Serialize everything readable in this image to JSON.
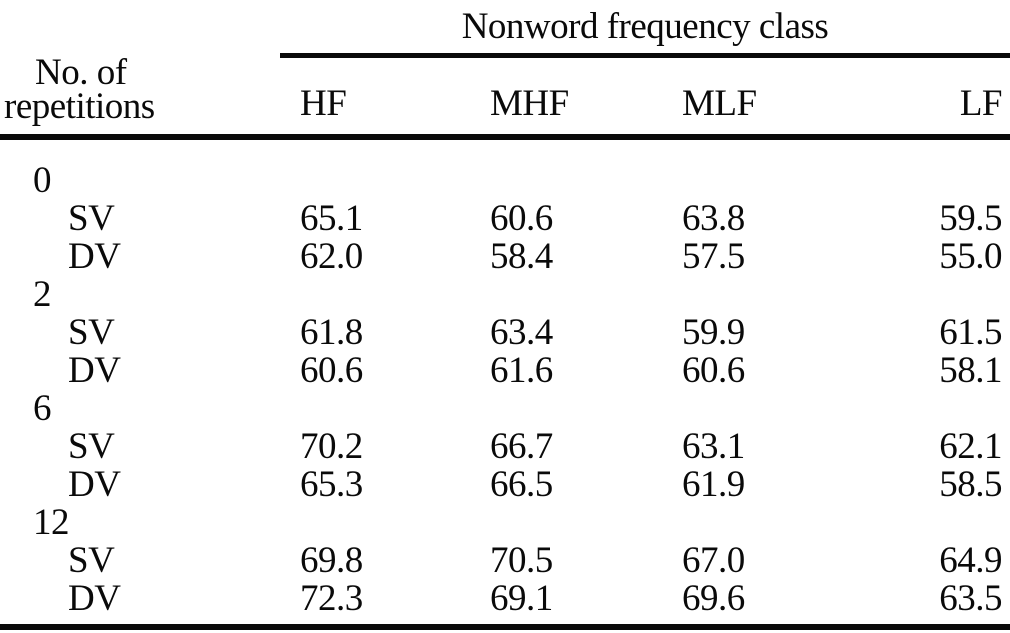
{
  "page": {
    "background_color": "#ffffff",
    "text_color": "#0a0a0a"
  },
  "table": {
    "row_header_line1": "No. of",
    "row_header_line2": "repetitions",
    "span_header": "Nonword frequency class",
    "columns": [
      "HF",
      "MHF",
      "MLF",
      "LF"
    ],
    "groups": [
      {
        "label": "0",
        "rows": [
          {
            "label": "SV",
            "values": [
              "65.1",
              "60.6",
              "63.8",
              "59.5"
            ]
          },
          {
            "label": "DV",
            "values": [
              "62.0",
              "58.4",
              "57.5",
              "55.0"
            ]
          }
        ]
      },
      {
        "label": "2",
        "rows": [
          {
            "label": "SV",
            "values": [
              "61.8",
              "63.4",
              "59.9",
              "61.5"
            ]
          },
          {
            "label": "DV",
            "values": [
              "60.6",
              "61.6",
              "60.6",
              "58.1"
            ]
          }
        ]
      },
      {
        "label": "6",
        "rows": [
          {
            "label": "SV",
            "values": [
              "70.2",
              "66.7",
              "63.1",
              "62.1"
            ]
          },
          {
            "label": "DV",
            "values": [
              "65.3",
              "66.5",
              "61.9",
              "58.5"
            ]
          }
        ]
      },
      {
        "label": "12",
        "rows": [
          {
            "label": "SV",
            "values": [
              "69.8",
              "70.5",
              "67.0",
              "64.9"
            ]
          },
          {
            "label": "DV",
            "values": [
              "72.3",
              "69.1",
              "69.6",
              "63.5"
            ]
          }
        ]
      }
    ]
  }
}
